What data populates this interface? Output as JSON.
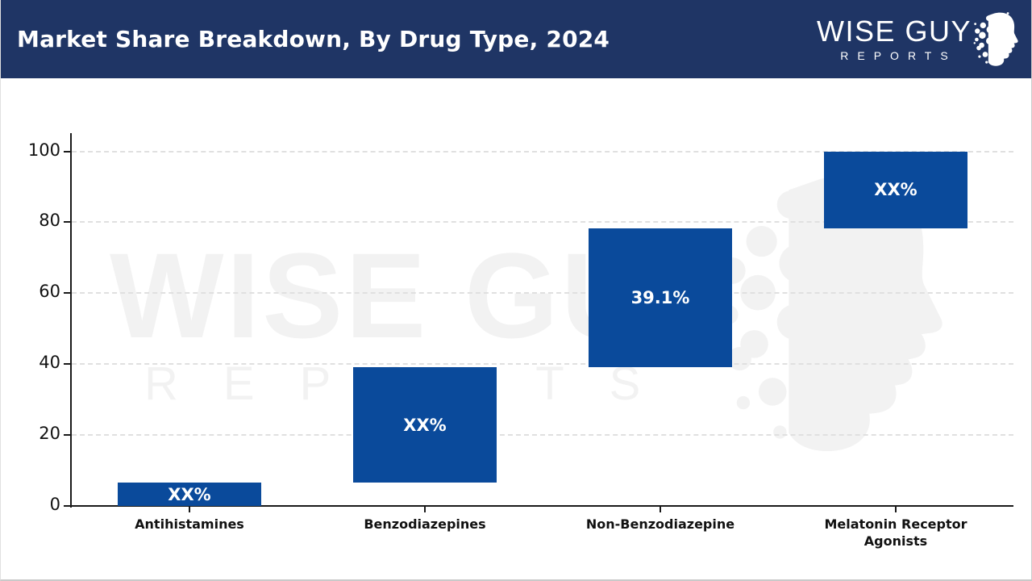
{
  "header": {
    "title": "Market Share Breakdown, By Drug Type, 2024",
    "logo": {
      "wordmark": "WISE GUY",
      "subtext": "REPORTS"
    }
  },
  "watermark": {
    "wordmark": "WISE GUY",
    "subtext": "REPORTS"
  },
  "colors": {
    "header_bg": "#1f3565",
    "bar": "#0a4a9b",
    "grid": "#e0e0e0",
    "axis": "#1a1a1a",
    "watermark": "#f2f2f2",
    "bar_label_text": "#ffffff"
  },
  "chart_data": {
    "type": "bar",
    "subtype": "floating-waterfall",
    "title": "Market Share Breakdown, By Drug Type, 2024",
    "categories": [
      "Antihistamines",
      "Benzodiazepines",
      "Non-Benzodiazepine",
      "Melatonin Receptor Agonists"
    ],
    "series": [
      {
        "name": "Market share (%)",
        "segments": [
          {
            "category": "Antihistamines",
            "start": 0,
            "end": 6.5,
            "label": "XX%"
          },
          {
            "category": "Benzodiazepines",
            "start": 6.6,
            "end": 39.1,
            "label": "XX%"
          },
          {
            "category": "Non-Benzodiazepine",
            "start": 39.1,
            "end": 78.2,
            "label": "39.1%"
          },
          {
            "category": "Melatonin Receptor Agonists",
            "start": 78.2,
            "end": 100,
            "label": "XX%"
          }
        ]
      }
    ],
    "xlabel": "",
    "ylabel": "",
    "ylim": [
      0,
      100
    ],
    "yticks": [
      0,
      20,
      40,
      60,
      80,
      100
    ],
    "grid": "dashed-horizontal",
    "legend": "none",
    "bar_color": "#0a4a9b"
  }
}
